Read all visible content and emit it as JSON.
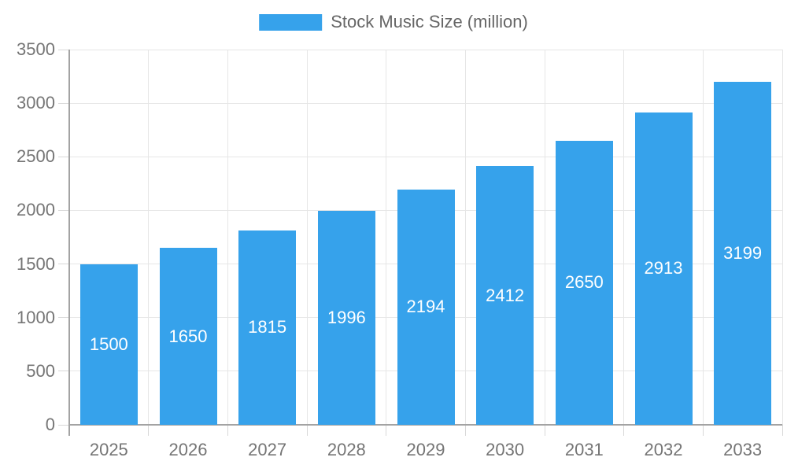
{
  "chart_data": {
    "type": "bar",
    "title": "",
    "legend": {
      "label": "Stock Music Size (million)",
      "position": "top-center"
    },
    "categories": [
      "2025",
      "2026",
      "2027",
      "2028",
      "2029",
      "2030",
      "2031",
      "2032",
      "2033"
    ],
    "series": [
      {
        "name": "Stock Music Size (million)",
        "color": "#36A2EB",
        "values": [
          1500,
          1650,
          1815,
          1996,
          2194,
          2412,
          2650,
          2913,
          3199
        ]
      }
    ],
    "xlabel": "",
    "ylabel": "",
    "ylim": [
      0,
      3500
    ],
    "yticks": [
      0,
      500,
      1000,
      1500,
      2000,
      2500,
      3000,
      3500
    ],
    "grid": true,
    "value_labels": {
      "show": true,
      "placement": "inside-center"
    }
  },
  "colors": {
    "bar": "#36A2EB",
    "grid": "#e6e6e6",
    "tick": "#d8d8d8",
    "axis": "#a3a3a3",
    "axis_label": "#757575",
    "legend_text": "#666666",
    "value_label": "#ffffff",
    "background": "#ffffff"
  }
}
